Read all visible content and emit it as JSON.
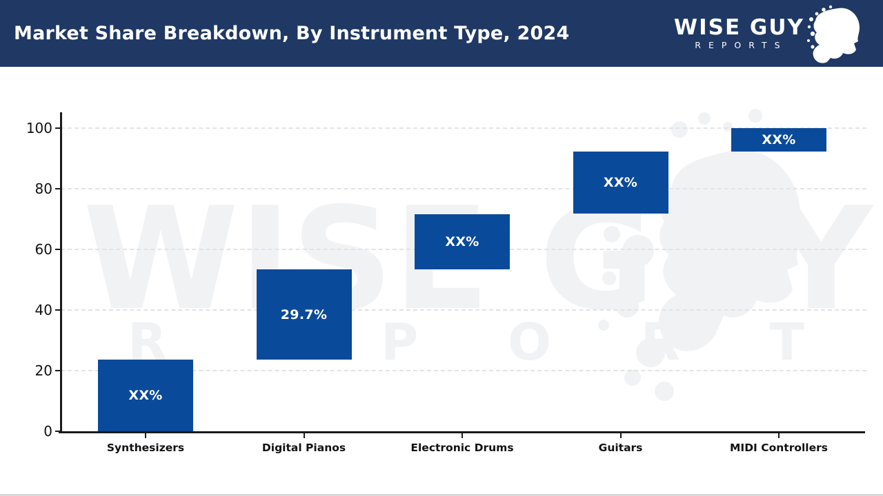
{
  "header": {
    "logo": {
      "line1": "WISE GUY",
      "line2": "REPORTS",
      "face_icon": "dotted-face-profile"
    }
  },
  "chart_data": {
    "type": "bar",
    "subtype": "waterfall",
    "title": "Market Share Breakdown, By Instrument Type, 2024",
    "categories": [
      "Synthesizers",
      "Digital Pianos",
      "Electronic Drums",
      "Guitars",
      "MIDI Controllers"
    ],
    "segments": [
      {
        "category": "Synthesizers",
        "start": 0,
        "end": 23.6,
        "value_label": "XX%"
      },
      {
        "category": "Digital Pianos",
        "start": 23.6,
        "end": 53.3,
        "value_label": "29.7%"
      },
      {
        "category": "Electronic Drums",
        "start": 53.5,
        "end": 71.5,
        "value_label": "XX%"
      },
      {
        "category": "Guitars",
        "start": 71.9,
        "end": 92.3,
        "value_label": "XX%"
      },
      {
        "category": "MIDI Controllers",
        "start": 92.3,
        "end": 100,
        "value_label": "XX%"
      }
    ],
    "yticks": [
      0,
      20,
      40,
      60,
      80,
      100
    ],
    "ylim": [
      0,
      105
    ],
    "grid": "horizontal dashed",
    "legend": "none",
    "colors": {
      "bar": "#0a4a9a",
      "header_background": "#1f3864",
      "gridline": "#e3e3e3",
      "axis": "#1a1a1a",
      "watermark": "#f1f2f4"
    },
    "watermark_text1": "WISE GUY",
    "watermark_text2": "R E P O R T S"
  }
}
